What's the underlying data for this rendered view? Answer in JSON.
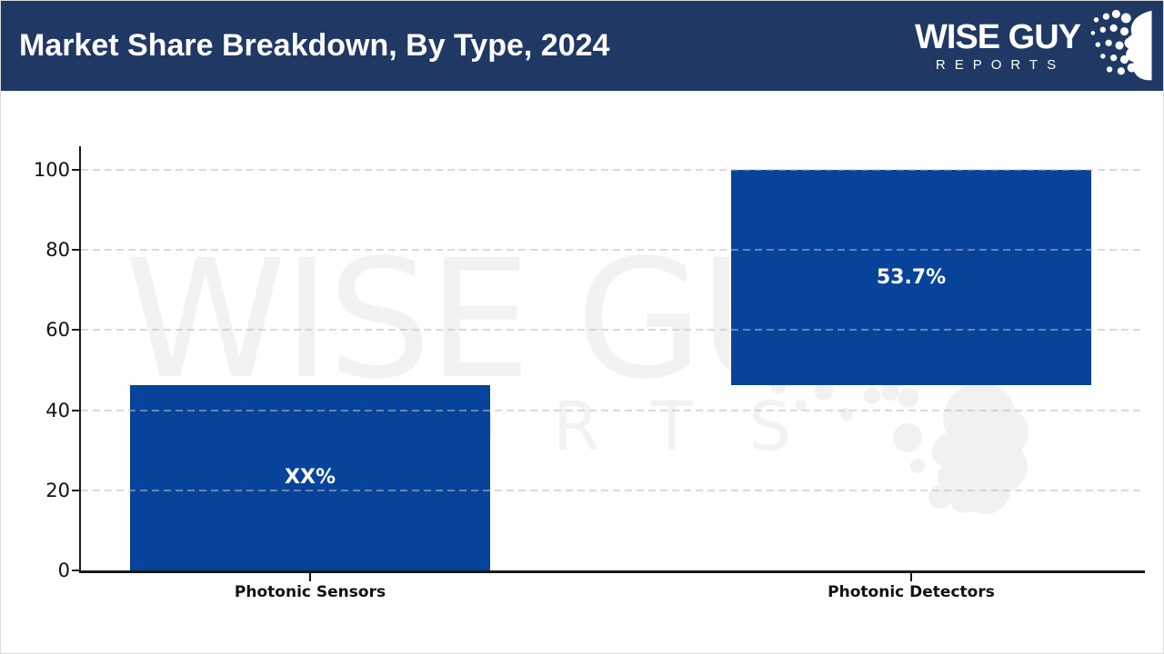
{
  "header": {
    "title": "Market Share Breakdown, By Type, 2024",
    "logo": {
      "line1": "WISE GUY",
      "line2": "REPORTS"
    },
    "colors": {
      "background": "#1f3864",
      "text": "#ffffff"
    }
  },
  "watermark": {
    "line1": "WISE GUY",
    "line2": "REPORTS"
  },
  "chart_data": {
    "type": "bar",
    "subtype": "waterfall-style floating percentage segments",
    "title": "Market Share Breakdown, By Type, 2024",
    "categories": [
      "Photonic Sensors",
      "Photonic Detectors"
    ],
    "bars": [
      {
        "category": "Photonic Sensors",
        "label": "XX%",
        "start": 0,
        "end": 46.3
      },
      {
        "category": "Photonic Detectors",
        "label": "53.7%",
        "start": 46.3,
        "end": 100
      }
    ],
    "xlabel": "",
    "ylabel": "",
    "ylim": [
      0,
      100
    ],
    "yticks": [
      0,
      20,
      40,
      60,
      80,
      100
    ],
    "grid": "horizontal-dashed",
    "legend": "none",
    "bar_color": "#07439a",
    "label_color": "#ffffff",
    "axis_color": "#1a1a1a"
  }
}
